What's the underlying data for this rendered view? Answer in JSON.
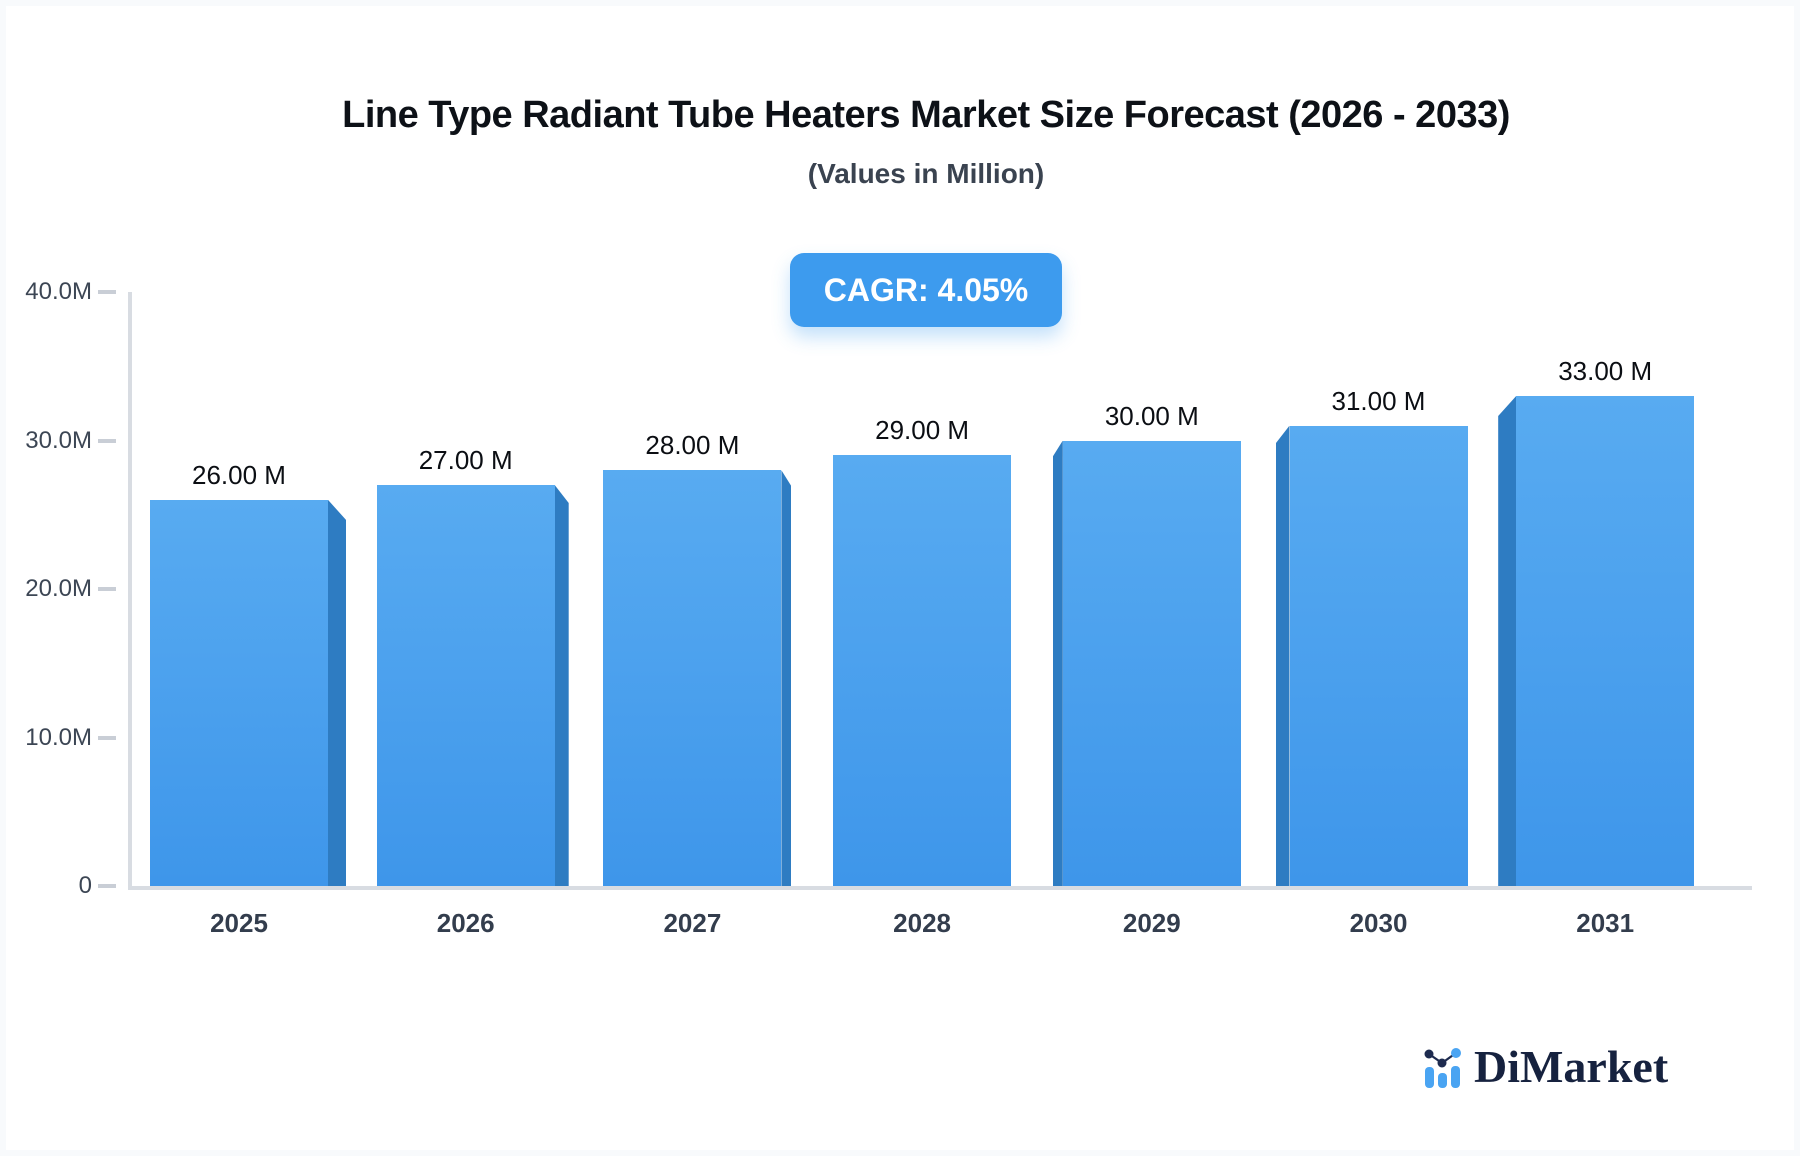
{
  "header": {
    "title": "Line Type Radiant Tube Heaters Market Size Forecast (2026 - 2033)",
    "subtitle": "(Values in Million)",
    "cagr_label": "CAGR: 4.05%"
  },
  "brand": {
    "name": "DiMarket",
    "icon": "bar-line-chart-icon"
  },
  "colors": {
    "bar_face_top": "#58abf1",
    "bar_face_bottom": "#3e96ea",
    "bar_side": "#2e7cc2",
    "badge_bg": "#3d9bee",
    "axis": "#d8dce2",
    "brand_navy": "#16223f",
    "brand_blue": "#4aa4f2"
  },
  "chart_data": {
    "type": "bar",
    "title": "Line Type Radiant Tube Heaters Market Size Forecast (2026 - 2033)",
    "subtitle": "(Values in Million)",
    "annotation": "CAGR: 4.05%",
    "categories": [
      "2025",
      "2026",
      "2027",
      "2028",
      "2029",
      "2030",
      "2031"
    ],
    "values": [
      26,
      27,
      28,
      29,
      30,
      31,
      33
    ],
    "bar_labels": [
      "26.00 M",
      "27.00 M",
      "28.00 M",
      "29.00 M",
      "30.00 M",
      "31.00 M",
      "33.00 M"
    ],
    "unit": "Million",
    "xlabel": "",
    "ylabel": "",
    "ylim": [
      0,
      40
    ],
    "y_ticks": [
      {
        "label": "40.0M",
        "value": 40
      },
      {
        "label": "30.0M",
        "value": 30
      },
      {
        "label": "20.0M",
        "value": 20
      },
      {
        "label": "10.0M",
        "value": 10
      },
      {
        "label": "0",
        "value": 0
      }
    ],
    "grid": false,
    "legend": false,
    "effect": "3d-perspective-center"
  }
}
